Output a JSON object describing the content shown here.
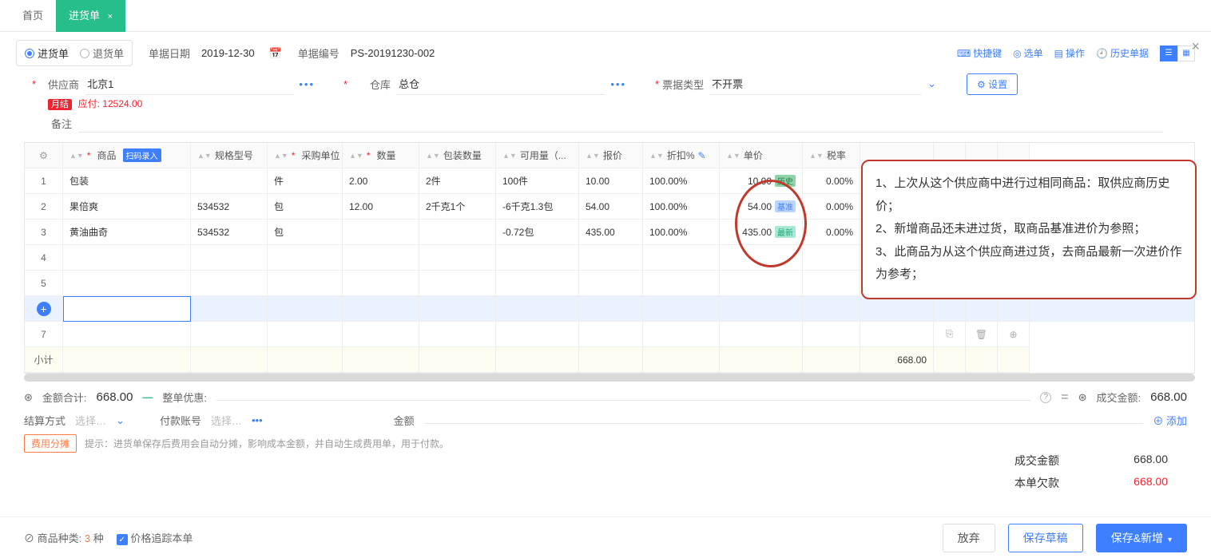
{
  "tabs": {
    "home": "首页",
    "active": "进货单"
  },
  "close_x": "×",
  "radioTabs": {
    "in": "进货单",
    "out": "退货单"
  },
  "docHeader": {
    "dateLabel": "单据日期",
    "dateValue": "2019-12-30",
    "numLabel": "单据编号",
    "numValue": "PS-20191230-002"
  },
  "headerActions": {
    "shortcut": "快捷键",
    "select": "选单",
    "ops": "操作",
    "history": "历史单据"
  },
  "fields": {
    "supplierLabel": "供应商",
    "supplierValue": "北京1",
    "warehouseLabel": "仓库",
    "warehouseValue": "总仓",
    "invoiceLabel": "票据类型",
    "invoiceValue": "不开票",
    "settingsBtn": "设置",
    "payBadge": "月结",
    "payText": "应付: 12524.00",
    "remarkLabel": "备注"
  },
  "columns": {
    "product": "商品",
    "scan": "扫码录入",
    "spec": "规格型号",
    "unit": "采购单位",
    "qty": "数量",
    "pack": "包装数量",
    "avail": "可用量（...",
    "quote": "报价",
    "discount": "折扣%",
    "price": "单价",
    "tax": "税率"
  },
  "rows": [
    {
      "n": "1",
      "product": "包装",
      "spec": "",
      "unit": "件",
      "qty": "2.00",
      "pack": "2件",
      "avail": "100件",
      "quote": "10.00",
      "discount": "100.00%",
      "price": "10.00",
      "priceTag": "历史",
      "tagClass": "tag-hist",
      "tax": "0.00%"
    },
    {
      "n": "2",
      "product": "果倍爽",
      "spec": "534532",
      "unit": "包",
      "qty": "12.00",
      "pack": "2千克1个",
      "avail": "-6千克1.3包",
      "quote": "54.00",
      "discount": "100.00%",
      "price": "54.00",
      "priceTag": "基准",
      "tagClass": "tag-base",
      "tax": "0.00%"
    },
    {
      "n": "3",
      "product": "黄油曲奇",
      "spec": "534532",
      "unit": "包",
      "qty": "",
      "pack": "",
      "avail": "-0.72包",
      "quote": "435.00",
      "discount": "100.00%",
      "price": "435.00",
      "priceTag": "最新",
      "tagClass": "tag-new",
      "tax": "0.00%"
    },
    {
      "n": "4",
      "product": "",
      "spec": "",
      "unit": "",
      "qty": "",
      "pack": "",
      "avail": "",
      "quote": "",
      "discount": "",
      "price": "",
      "priceTag": "",
      "tagClass": "",
      "tax": ""
    },
    {
      "n": "5",
      "product": "",
      "spec": "",
      "unit": "",
      "qty": "",
      "pack": "",
      "avail": "",
      "quote": "",
      "discount": "",
      "price": "",
      "priceTag": "",
      "tagClass": "",
      "tax": ""
    }
  ],
  "row7": "7",
  "subtotal": {
    "label": "小计",
    "value": "668.00"
  },
  "callout": {
    "l1": "1、上次从这个供应商中进行过相同商品：取供应商历史价；",
    "l2": "2、新增商品还未进过货，取商品基准进价为参照；",
    "l3": "3、此商品为从这个供应商进过货，去商品最新一次进价作为参考；"
  },
  "totals": {
    "sumLabel": "金额合计:",
    "sumValue": "668.00",
    "discLabel": "整单优惠:",
    "dealLabel": "成交金额:",
    "dealValue": "668.00"
  },
  "settle": {
    "methodLabel": "结算方式",
    "methodPh": "选择…",
    "accountLabel": "付款账号",
    "accountPh": "选择…",
    "amountLabel": "金额",
    "addLabel": "添加"
  },
  "fee": {
    "btn": "费用分摊",
    "tip": "提示：进货单保存后费用会自动分摊，影响成本金额，并自动生成费用单，用于付款。"
  },
  "summary": {
    "dealLabel": "成交金额",
    "dealValue": "668.00",
    "dueLabel": "本单欠款",
    "dueValue": "668.00"
  },
  "footer": {
    "countLabel": "商品种类:",
    "countValue": "3",
    "countUnit": "种",
    "trackLabel": "价格追踪本单",
    "cancel": "放弃",
    "draft": "保存草稿",
    "saveNew": "保存&新增"
  }
}
